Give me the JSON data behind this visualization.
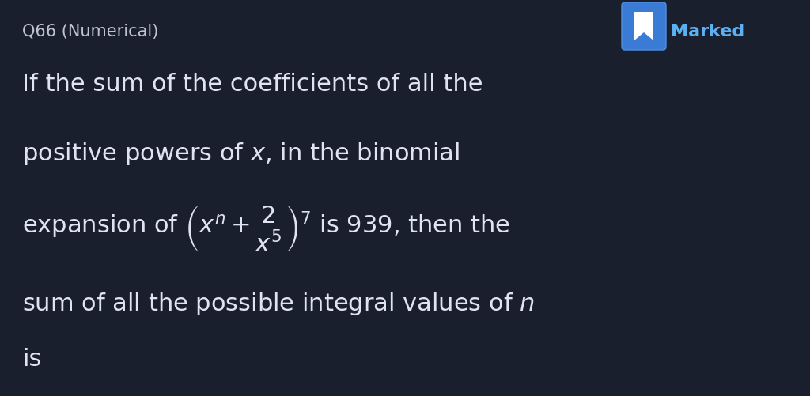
{
  "bg_color": "#1a1f2e",
  "header_text": "Q66 (Numerical)",
  "header_color": "#c0c4d0",
  "header_fontsize": 15,
  "marked_text": "Marked",
  "marked_color": "#5ab0f0",
  "marked_fontsize": 16,
  "marked_icon_color_top": "#5ab0f0",
  "marked_icon_color_bottom": "#2060c0",
  "body_color": "#e0e4f0",
  "body_fontsize": 22,
  "math_fontsize": 22,
  "fig_width": 10.24,
  "fig_height": 5.02,
  "dpi": 100
}
